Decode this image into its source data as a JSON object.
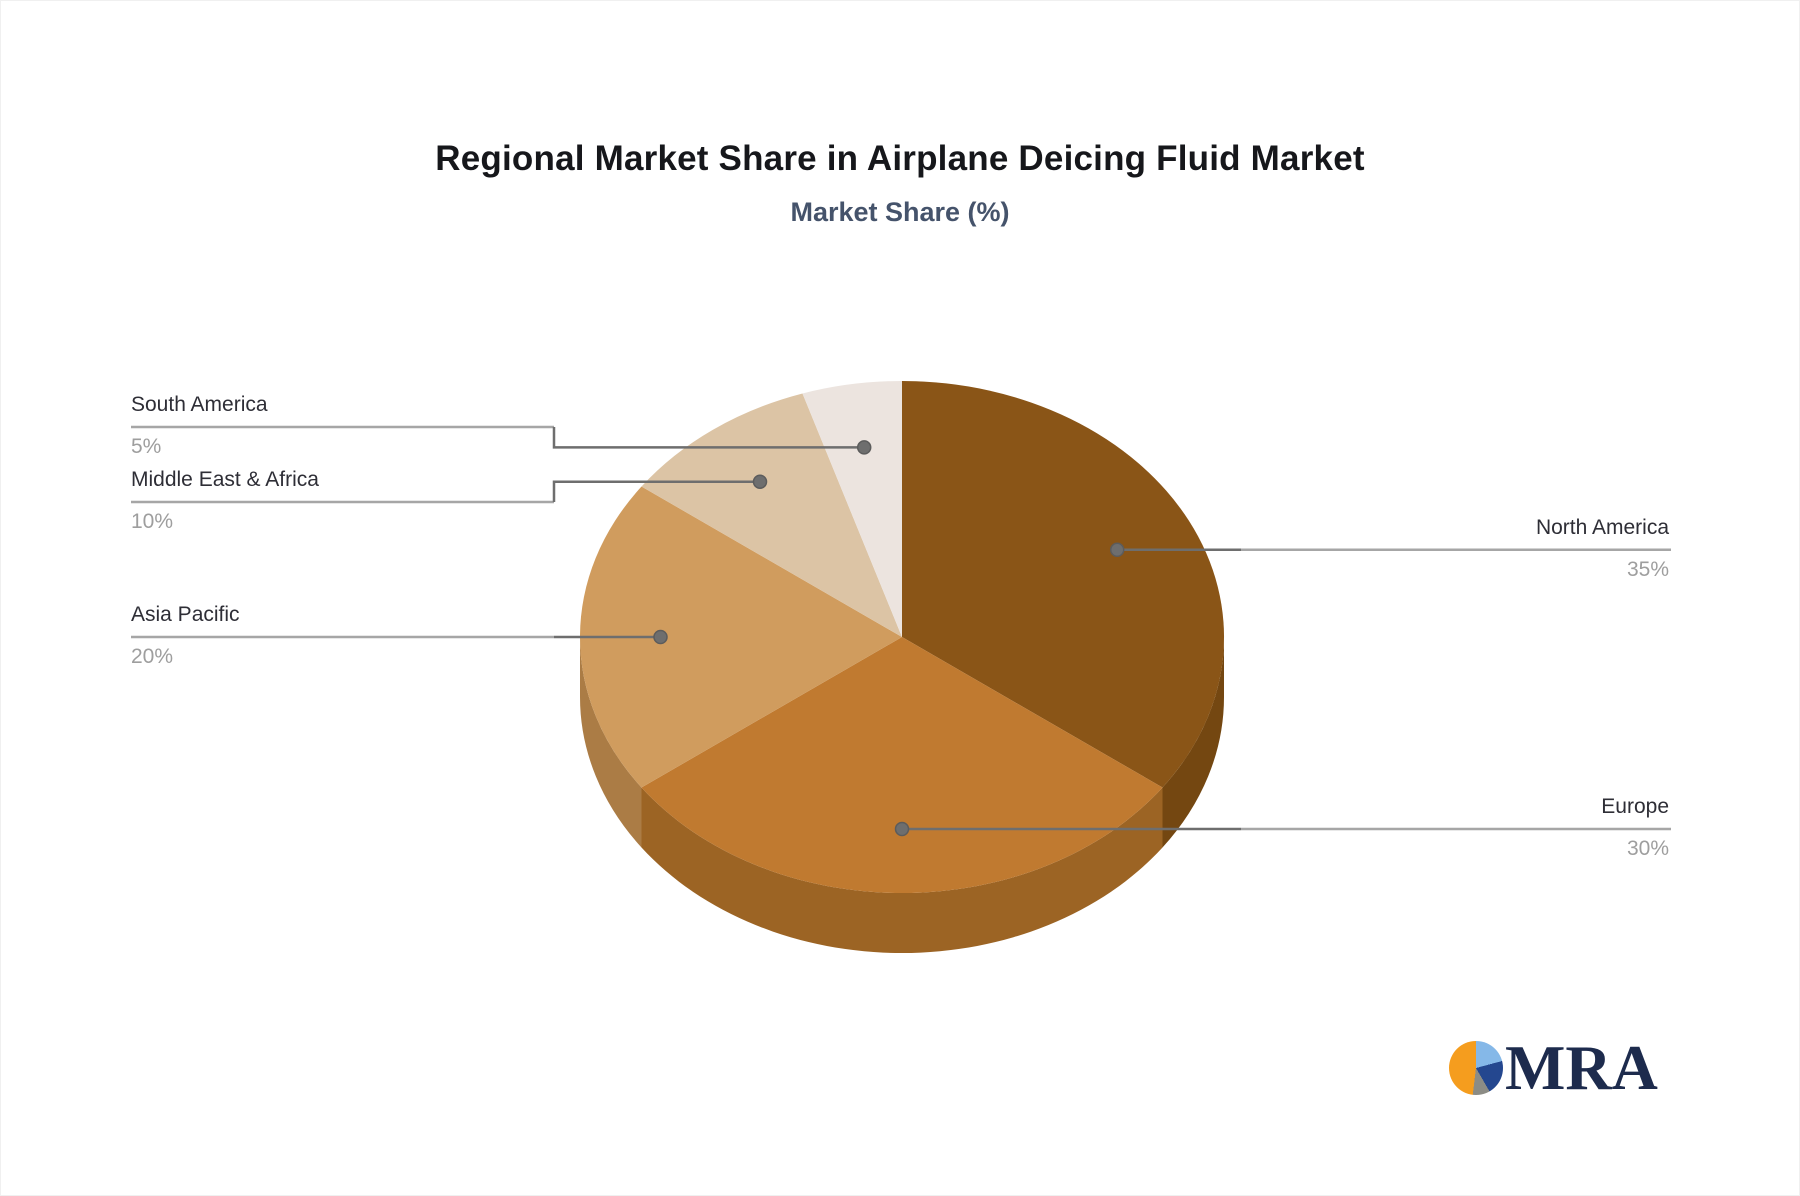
{
  "chart_data": {
    "type": "pie",
    "style": "3d",
    "title": "Regional Market Share in Airplane Deicing Fluid Market",
    "subtitle": "Market Share (%)",
    "unit": "%",
    "slices": [
      {
        "name": "North America",
        "value": 35,
        "pct_label": "35%",
        "color": "#8a5517",
        "side_color": "#744711"
      },
      {
        "name": "Europe",
        "value": 30,
        "pct_label": "30%",
        "color": "#c07a30",
        "side_color": "#9c6424"
      },
      {
        "name": "Asia Pacific",
        "value": 20,
        "pct_label": "20%",
        "color": "#d09c5e",
        "side_color": "#ab7c45"
      },
      {
        "name": "Middle East & Africa",
        "value": 10,
        "pct_label": "10%",
        "color": "#dcc4a5",
        "side_color": "#b29e84"
      },
      {
        "name": "South America",
        "value": 5,
        "pct_label": "5%",
        "color": "#ece4df",
        "side_color": "#bfb8b3"
      }
    ],
    "start_angle_deg": 0,
    "direction": "clockwise",
    "legend": "none",
    "label_text_color": "#2e2e36",
    "pct_text_color": "#9e9e9e",
    "connector_color": "#6e6e6e",
    "underline_color": "#a6a6a6"
  },
  "logo": {
    "text": "MRA",
    "text_color": "#1d2b4d",
    "icon_colors": {
      "light_blue": "#85b8e8",
      "navy": "#24478f",
      "gray": "#8c8c85",
      "orange": "#f59d1e"
    }
  }
}
